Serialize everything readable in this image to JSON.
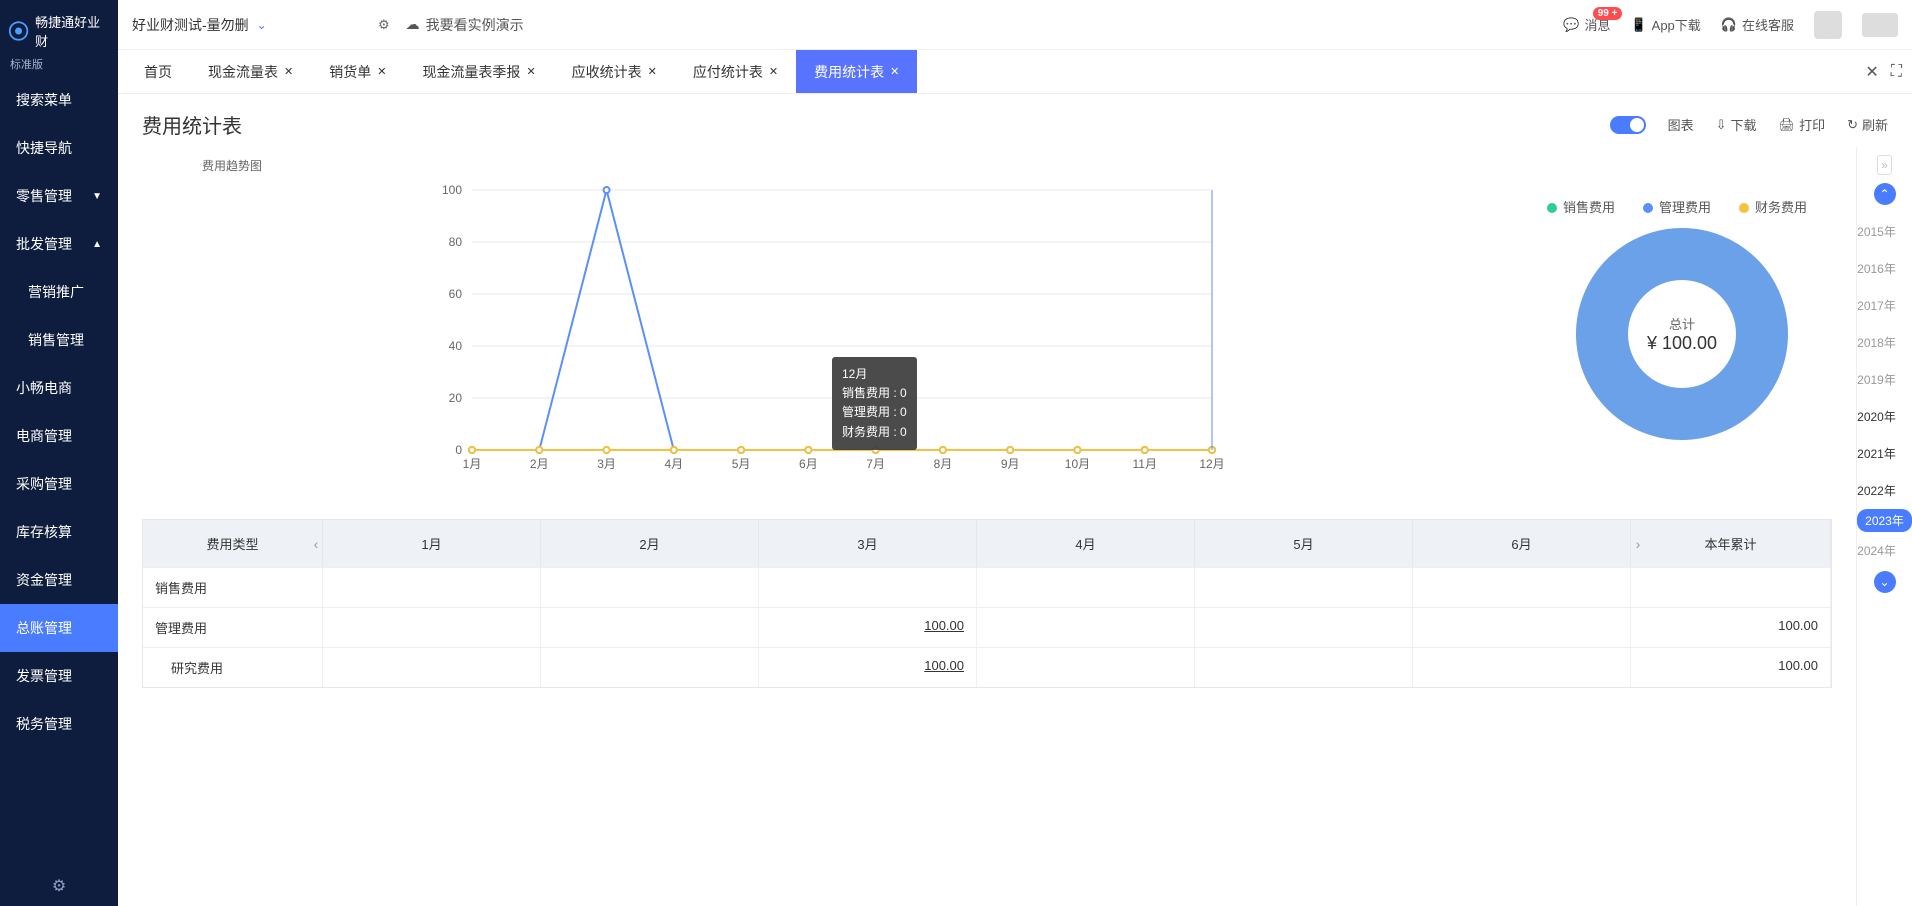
{
  "brand": {
    "name": "畅捷通好业财",
    "version": "标准版"
  },
  "sidebar": {
    "items": [
      {
        "label": "搜索菜单"
      },
      {
        "label": "快捷导航"
      },
      {
        "label": "零售管理",
        "arrow": "▼"
      },
      {
        "label": "批发管理",
        "arrow": "▲"
      },
      {
        "label": "营销推广",
        "indent": true
      },
      {
        "label": "销售管理",
        "indent": true
      },
      {
        "label": "小畅电商"
      },
      {
        "label": "电商管理"
      },
      {
        "label": "采购管理"
      },
      {
        "label": "库存核算"
      },
      {
        "label": "资金管理"
      },
      {
        "label": "总账管理",
        "active": true
      },
      {
        "label": "发票管理"
      },
      {
        "label": "税务管理"
      }
    ]
  },
  "topbar": {
    "project": "好业财测试-量勿删",
    "demo": "我要看实例演示",
    "msg": "消息",
    "msg_badge": "99 +",
    "app": "App下载",
    "cs": "在线客服"
  },
  "tabs": [
    {
      "label": "首页",
      "closable": false
    },
    {
      "label": "现金流量表",
      "closable": true
    },
    {
      "label": "销货单",
      "closable": true
    },
    {
      "label": "现金流量表季报",
      "closable": true
    },
    {
      "label": "应收统计表",
      "closable": true
    },
    {
      "label": "应付统计表",
      "closable": true
    },
    {
      "label": "费用统计表",
      "closable": true,
      "active": true
    }
  ],
  "page": {
    "title": "费用统计表",
    "toggle_label": "图表",
    "download": "下载",
    "print": "打印",
    "refresh": "刷新"
  },
  "chart": {
    "title": "费用趋势图",
    "legend": [
      {
        "label": "销售费用",
        "color": "#2ecc9b"
      },
      {
        "label": "管理费用",
        "color": "#5b8ff9"
      },
      {
        "label": "财务费用",
        "color": "#f6c040"
      }
    ],
    "ylim": [
      0,
      100
    ],
    "yticks": [
      0,
      20,
      40,
      60,
      80,
      100
    ],
    "xlabels": [
      "1月",
      "2月",
      "3月",
      "4月",
      "5月",
      "6月",
      "7月",
      "8月",
      "9月",
      "10月",
      "11月",
      "12月"
    ],
    "series": {
      "sales": [
        0,
        0,
        0,
        0,
        0,
        0,
        0,
        0,
        0,
        0,
        0,
        0
      ],
      "admin": [
        0,
        0,
        100,
        0,
        0,
        0,
        0,
        0,
        0,
        0,
        0,
        0
      ],
      "finance": [
        0,
        0,
        0,
        0,
        0,
        0,
        0,
        0,
        0,
        0,
        0,
        0
      ]
    },
    "grid_color": "#e8e8e8",
    "tooltip": {
      "month": "12月",
      "lines": [
        "销售费用 : 0",
        "管理费用 : 0",
        "财务费用 : 0"
      ]
    }
  },
  "donut": {
    "color": "#6aa1e8",
    "center_label": "总计",
    "center_value": "¥ 100.00"
  },
  "years": {
    "list": [
      "2015年",
      "2016年",
      "2017年",
      "2018年",
      "2019年",
      "2020年",
      "2021年",
      "2022年",
      "2023年",
      "2024年"
    ],
    "active": "2023年",
    "strong": [
      "2020年",
      "2021年",
      "2022年"
    ]
  },
  "table": {
    "cat_header": "费用类型",
    "months": [
      "1月",
      "2月",
      "3月",
      "4月",
      "5月",
      "6月"
    ],
    "total_header": "本年累计",
    "rows": [
      {
        "cat": "销售费用",
        "cells": [
          "",
          "",
          "",
          "",
          "",
          ""
        ],
        "total": ""
      },
      {
        "cat": "管理费用",
        "cells": [
          "",
          "",
          "100.00",
          "",
          "",
          ""
        ],
        "total": "100.00",
        "underline": true
      },
      {
        "cat": "研究费用",
        "indent": true,
        "cells": [
          "",
          "",
          "100.00",
          "",
          "",
          ""
        ],
        "total": "100.00",
        "underline": true
      }
    ]
  }
}
